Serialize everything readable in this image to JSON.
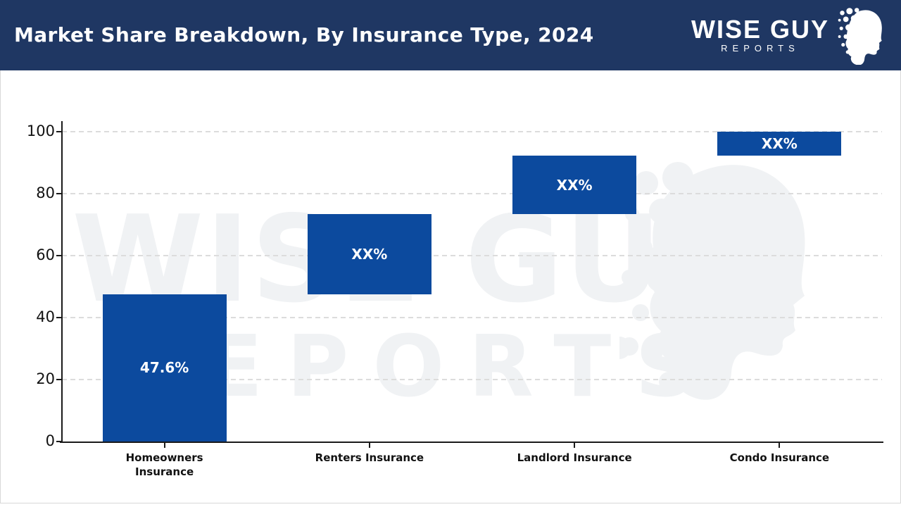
{
  "header": {
    "title": "Market Share Breakdown, By Insurance Type, 2024",
    "bg_color": "#1f3763",
    "logo": {
      "line1": "WISE GUY",
      "line2": "REPORTS"
    }
  },
  "watermark": {
    "line1": "WISE GUY",
    "line2": "REPORTS"
  },
  "chart_data": {
    "type": "bar",
    "subtype": "waterfall",
    "title": "Market Share Breakdown, By Insurance Type, 2024",
    "xlabel": "",
    "ylabel": "",
    "categories": [
      "Homeowners\nInsurance",
      "Renters Insurance",
      "Landlord Insurance",
      "Condo Insurance"
    ],
    "segments": [
      {
        "start": 0,
        "end": 47.6,
        "label": "47.6%"
      },
      {
        "start": 47.6,
        "end": 73.4,
        "label": "XX%"
      },
      {
        "start": 73.4,
        "end": 92.3,
        "label": "XX%"
      },
      {
        "start": 92.3,
        "end": 100,
        "label": "XX%"
      }
    ],
    "yticks": [
      0,
      20,
      40,
      60,
      80,
      100
    ],
    "ylim": [
      0,
      103.5
    ],
    "grid": "horizontal-dashed",
    "legend_position": "none",
    "bar_color": "#0c4a9e",
    "bar_label_color": "#ffffff",
    "grid_color": "#dcdcdc",
    "axis_color": "#1a1a1a"
  }
}
